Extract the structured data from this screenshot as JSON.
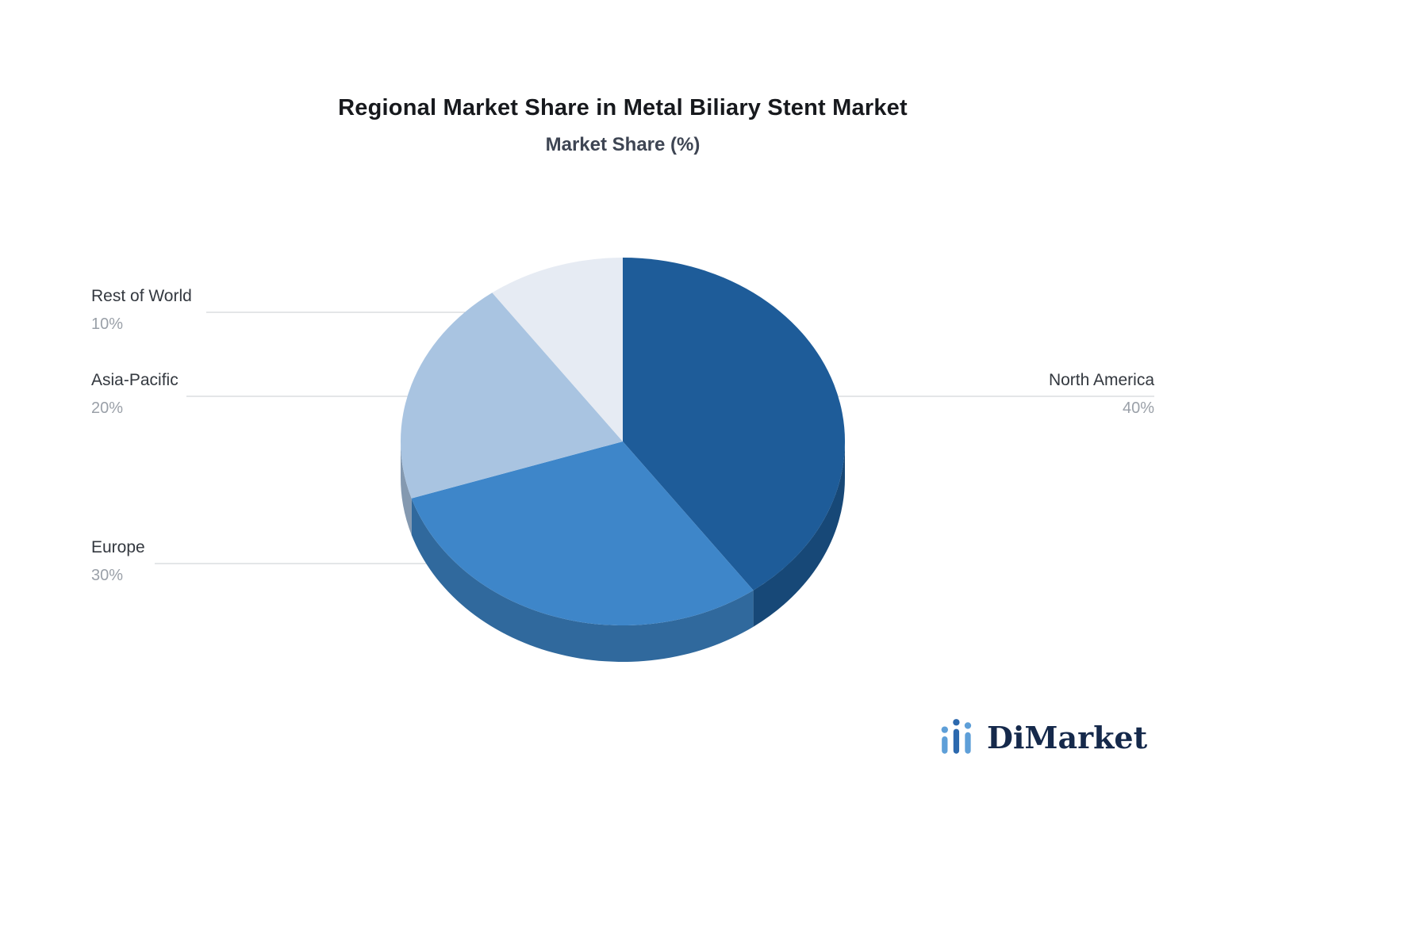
{
  "chart_data": {
    "type": "pie",
    "title": "Regional Market Share in Metal Biliary Stent Market",
    "subtitle": "Market Share (%)",
    "unit": "%",
    "labels": [
      "North America",
      "Europe",
      "Asia-Pacific",
      "Rest of World"
    ],
    "values": [
      40,
      30,
      20,
      10
    ],
    "display_values": [
      "40%",
      "30%",
      "20%",
      "10%"
    ],
    "colors": [
      "#1e5c99",
      "#3e86c9",
      "#a9c4e1",
      "#e6ebf3"
    ],
    "start_angle_deg": -90,
    "direction": "clockwise",
    "effect_3d": true,
    "legend": "none",
    "connector_line_color": "#c8ccd1",
    "connector_dot_color": "#7b8087"
  },
  "branding": {
    "logo_text": "DiMarket",
    "logo_icon": "bar-chart-icon",
    "logo_text_color": "#15294b",
    "logo_icon_colors": [
      "#5e9fd8",
      "#2c69ae"
    ]
  }
}
